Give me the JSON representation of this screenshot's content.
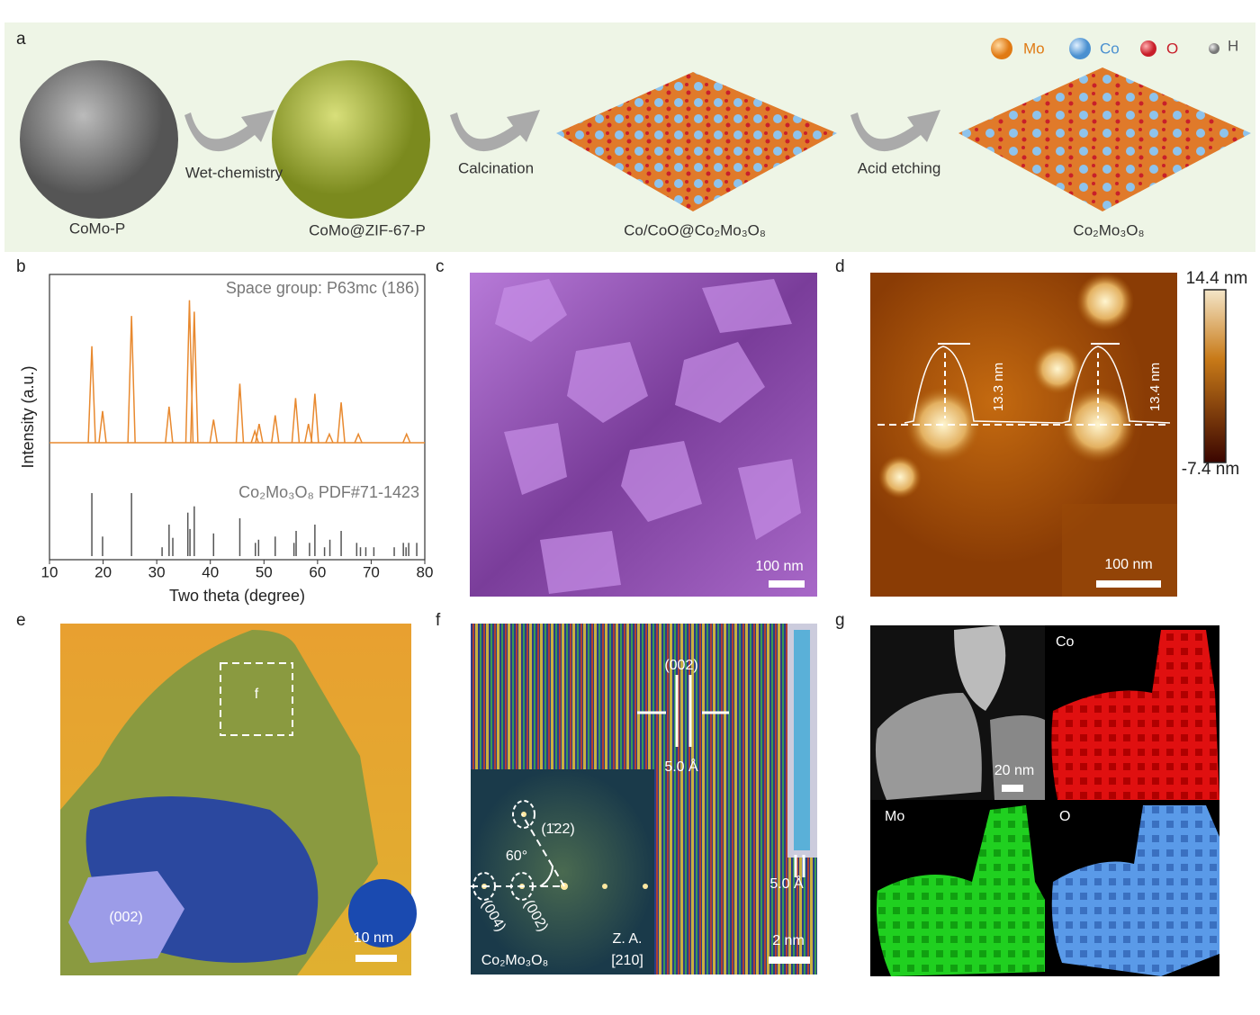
{
  "panels": {
    "a": {
      "letter": "a",
      "legend": [
        "Mo",
        "Co",
        "O",
        "H"
      ],
      "steps": [
        "Wet-chemistry",
        "Calcination",
        "Acid etching"
      ],
      "captions": [
        "CoMo-P",
        "CoMo@ZIF-67-P",
        "Co/CoO@Co₂Mo₃O₈",
        "Co₂Mo₃O₈"
      ]
    },
    "b": {
      "letter": "b"
    },
    "c": {
      "letter": "c",
      "scale_bar": "100 nm"
    },
    "d": {
      "letter": "d",
      "colorbar_max": "14.4 nm",
      "colorbar_min": "-7.4 nm",
      "heights": [
        "13.3 nm",
        "13.4 nm"
      ],
      "scale_bar": "100 nm"
    },
    "e": {
      "letter": "e",
      "box_label": "f",
      "facet": "(002)",
      "scale_bar": "10 nm"
    },
    "f": {
      "letter": "f",
      "plane": "(002)",
      "spacing": "5.0 Å",
      "model_spacing": "5.0 Å",
      "fft_spots": [
        "(1̄22)",
        "(004)",
        "(002)"
      ],
      "angle": "60°",
      "zone_axis": [
        "Z. A.",
        "[210]"
      ],
      "phase": "Co₂Mo₃O₈",
      "scale_bar": "2 nm"
    },
    "g": {
      "letter": "g",
      "scale_bar": "20 nm",
      "maps": [
        "Co",
        "Mo",
        "O"
      ]
    }
  },
  "chart_data": {
    "type": "xrd",
    "annotation": "Space group: P63mc (186)",
    "xlabel": "Two theta (degree)",
    "ylabel": "Intensity (a.u.)",
    "xlim": [
      10,
      80
    ],
    "xticks": [
      10,
      20,
      30,
      40,
      50,
      60,
      70,
      80
    ],
    "ylim": [
      0,
      100
    ],
    "series": [
      {
        "color": "#e8892f",
        "x": [
          17.9,
          19.9,
          25.3,
          32.3,
          36.1,
          37.0,
          40.6,
          45.5,
          48.3,
          49.1,
          52.1,
          55.9,
          58.3,
          59.5,
          62.2,
          64.4,
          67.6,
          76.6
        ],
        "values": [
          67,
          22,
          88,
          25,
          99,
          91,
          16,
          41,
          8,
          13,
          19,
          31,
          13,
          34,
          6,
          28,
          6,
          6
        ]
      },
      {
        "name": "Co₂Mo₃O₈ PDF#71-1423",
        "color": "#555555",
        "x": [
          17.9,
          19.9,
          25.3,
          31.0,
          32.3,
          33.0,
          35.8,
          36.2,
          37.0,
          40.6,
          45.5,
          48.4,
          49.0,
          52.1,
          55.6,
          56.0,
          58.5,
          59.5,
          61.3,
          62.3,
          64.4,
          67.3,
          68.0,
          69.0,
          70.5,
          74.3,
          76.0,
          76.5,
          77.0,
          78.5
        ],
        "values": [
          100,
          31,
          100,
          14,
          50,
          29,
          69,
          43,
          79,
          36,
          60,
          21,
          26,
          31,
          21,
          40,
          21,
          50,
          14,
          26,
          40,
          21,
          14,
          14,
          14,
          14,
          21,
          14,
          21,
          21
        ]
      }
    ]
  }
}
